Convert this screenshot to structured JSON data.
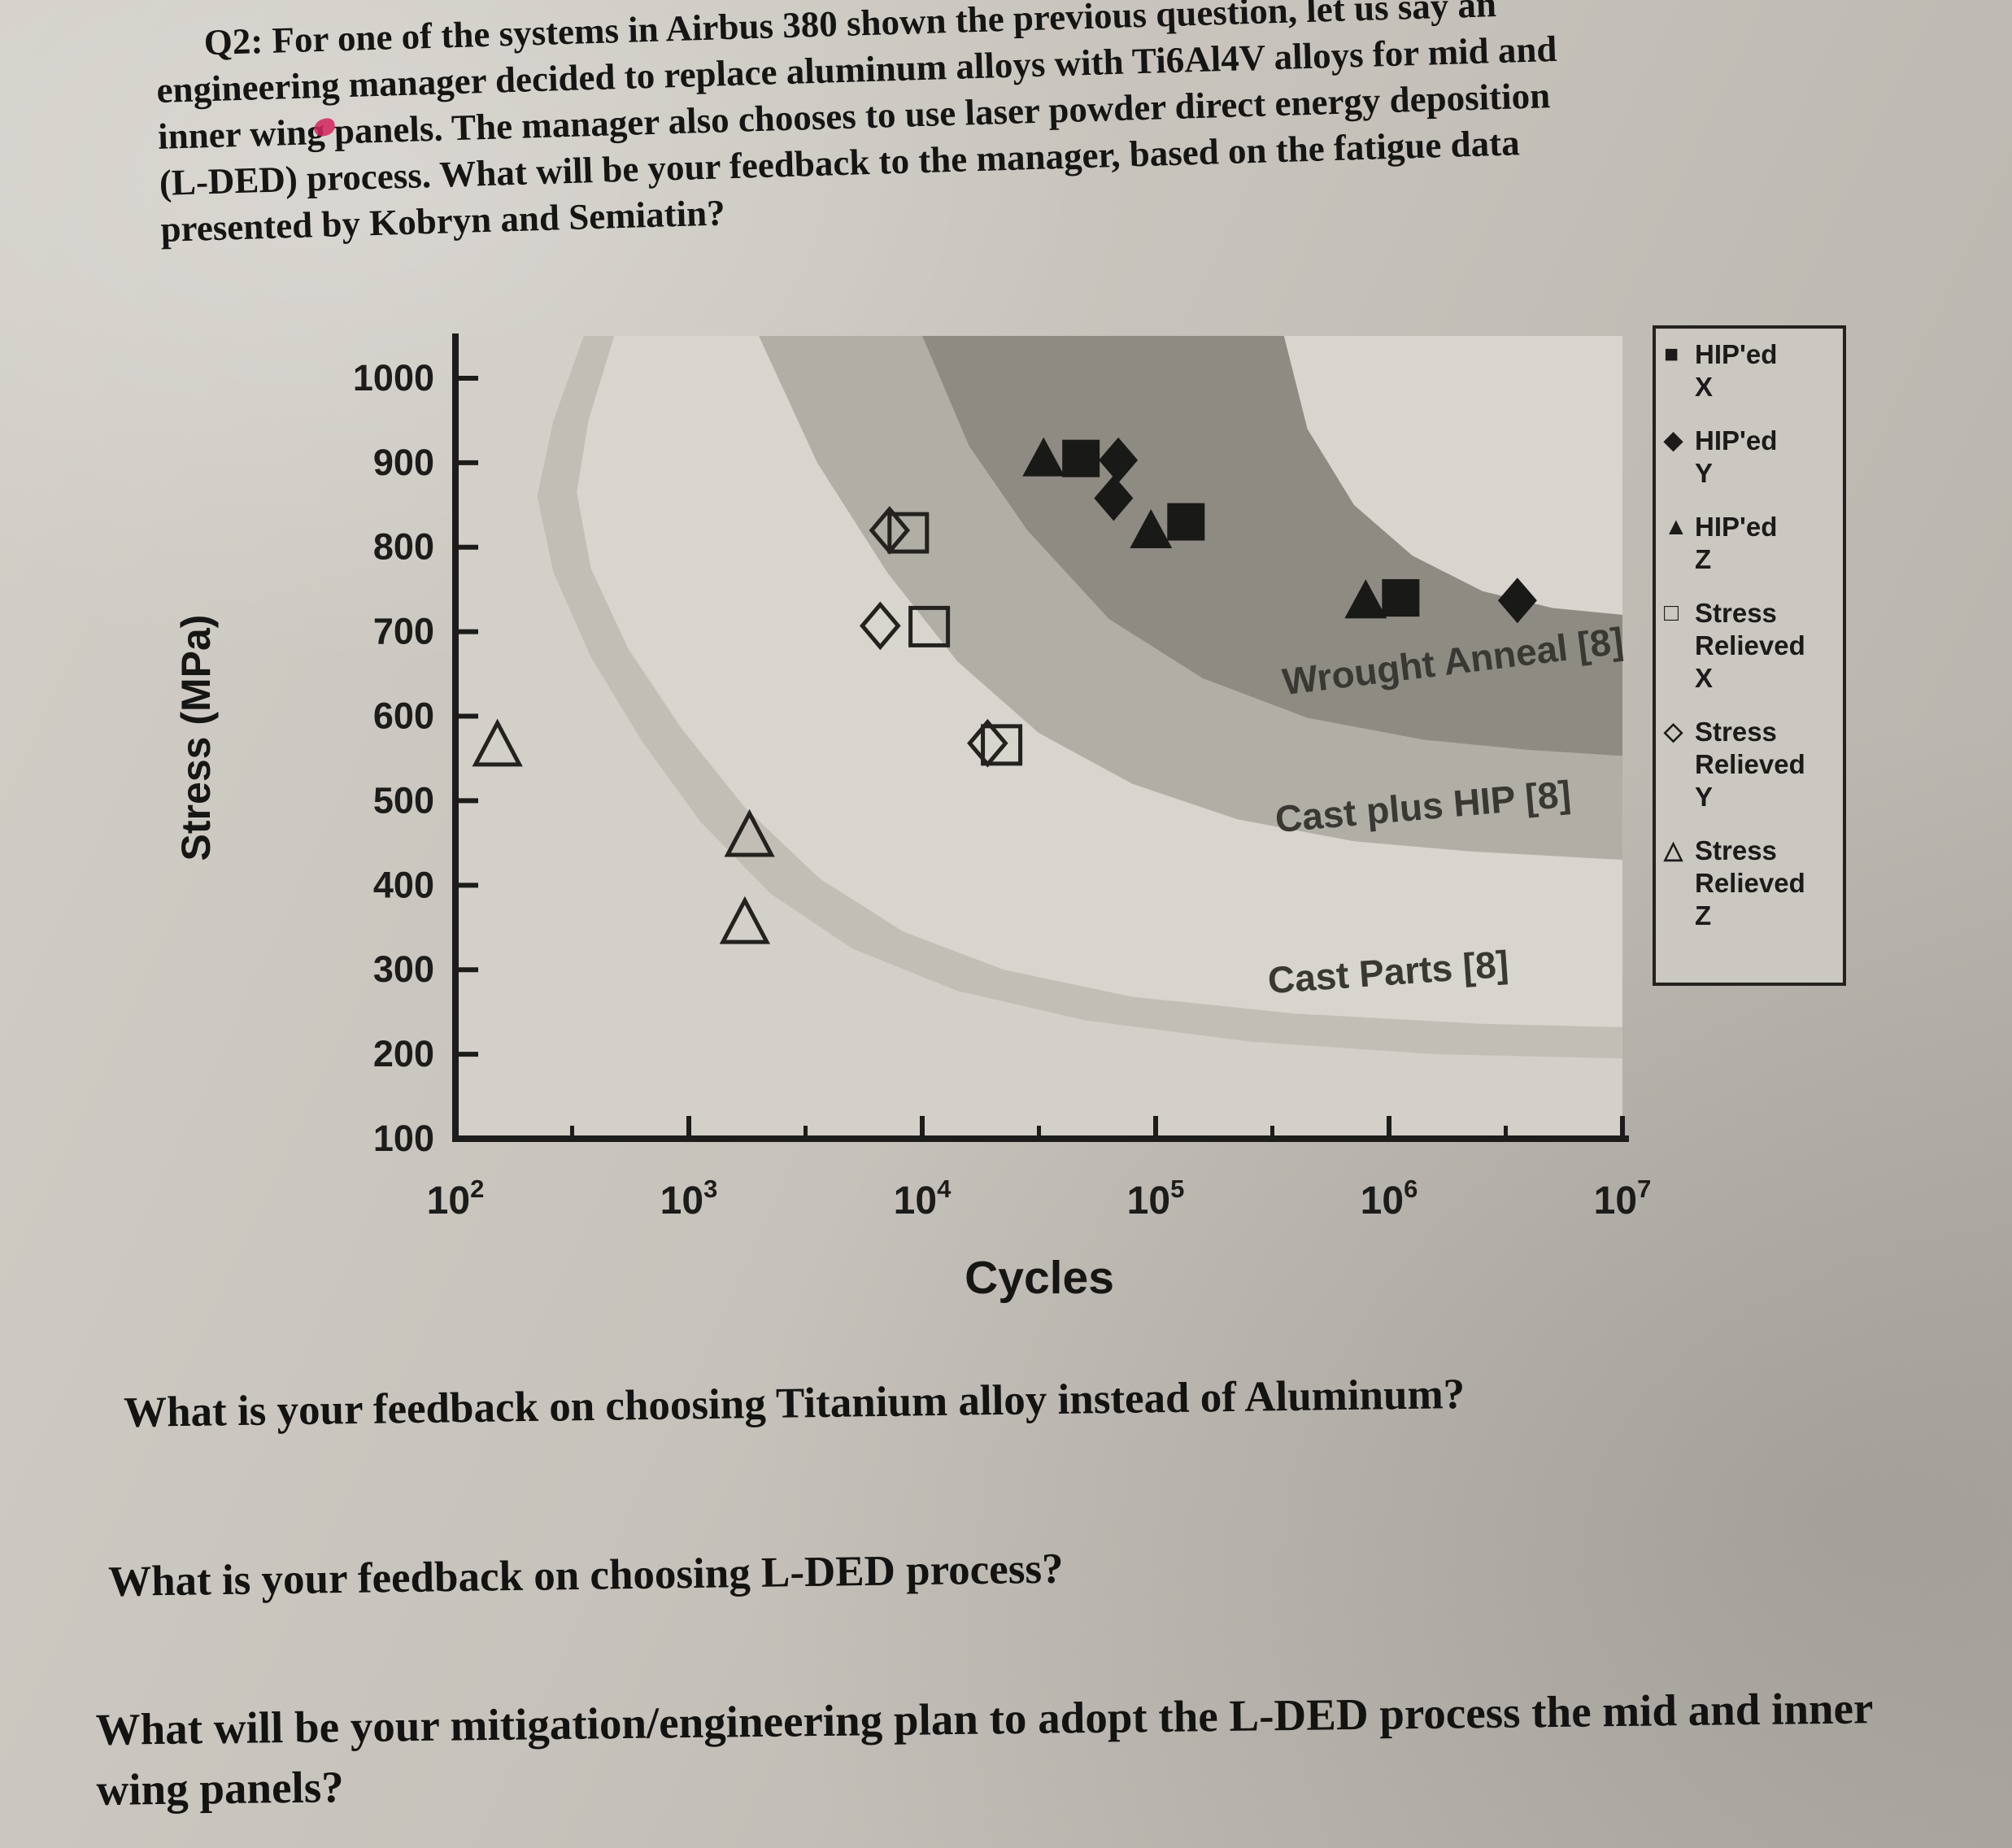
{
  "page": {
    "header_lines": [
      "Q2: For one of the systems in Airbus 380 shown the previous question, let us say an",
      "engineering manager decided to replace aluminum alloys with Ti6Al4V alloys for mid and",
      "inner wing panels.  The manager also chooses to use laser powder direct energy deposition",
      "(L-DED) process.  What will be your feedback to the manager, based on the fatigue data",
      "presented by Kobryn and Semiatin?"
    ],
    "questions": [
      "What is your feedback on choosing Titanium alloy instead of Aluminum?",
      "What is your feedback on choosing L-DED process?",
      "What will be your mitigation/engineering plan to adopt the L-DED process the mid and inner wing panels?"
    ]
  },
  "chart_data": {
    "type": "scatter",
    "xlabel": "Cycles",
    "ylabel": "Stress (MPa)",
    "x_scale": "log",
    "xlim_exponents": [
      2,
      7
    ],
    "x_tick_exponents": [
      2,
      3,
      4,
      5,
      6,
      7
    ],
    "ylim": [
      100,
      1000
    ],
    "y_ticks": [
      100,
      200,
      300,
      400,
      500,
      600,
      700,
      800,
      900,
      1000
    ],
    "colors": {
      "plot_bg": "#d3d0c9",
      "marker": "#191917",
      "axis": "#1c1c1a"
    },
    "bands": [
      {
        "name": "cast-parts-outer",
        "color": "#c2beb6",
        "points": [
          [
            2.55,
            1050
          ],
          [
            2.42,
            950
          ],
          [
            2.35,
            860
          ],
          [
            2.42,
            770
          ],
          [
            2.58,
            670
          ],
          [
            2.8,
            570
          ],
          [
            3.05,
            475
          ],
          [
            3.35,
            390
          ],
          [
            3.7,
            325
          ],
          [
            4.15,
            275
          ],
          [
            4.7,
            240
          ],
          [
            5.4,
            215
          ],
          [
            6.2,
            200
          ],
          [
            7.0,
            195
          ],
          [
            7.0,
            1050
          ]
        ]
      },
      {
        "name": "cast-inner-light",
        "color": "#d8d5ce",
        "points": [
          [
            2.68,
            1050
          ],
          [
            2.57,
            950
          ],
          [
            2.52,
            865
          ],
          [
            2.58,
            775
          ],
          [
            2.74,
            680
          ],
          [
            2.97,
            585
          ],
          [
            3.24,
            492
          ],
          [
            3.56,
            408
          ],
          [
            3.92,
            345
          ],
          [
            4.35,
            300
          ],
          [
            4.9,
            268
          ],
          [
            5.6,
            248
          ],
          [
            6.4,
            236
          ],
          [
            7.0,
            232
          ],
          [
            7.0,
            1050
          ]
        ]
      },
      {
        "name": "cast-plus-hip",
        "color": "#b1aea6",
        "points": [
          [
            3.3,
            1050
          ],
          [
            3.55,
            900
          ],
          [
            3.85,
            770
          ],
          [
            4.15,
            665
          ],
          [
            4.5,
            580
          ],
          [
            4.9,
            520
          ],
          [
            5.35,
            478
          ],
          [
            5.85,
            452
          ],
          [
            6.35,
            440
          ],
          [
            7.0,
            430
          ],
          [
            7.0,
            553
          ],
          [
            6.6,
            560
          ],
          [
            6.15,
            572
          ],
          [
            5.65,
            598
          ],
          [
            5.2,
            645
          ],
          [
            4.8,
            715
          ],
          [
            4.45,
            820
          ],
          [
            4.2,
            920
          ],
          [
            4.0,
            1050
          ]
        ]
      },
      {
        "name": "wrought-anneal",
        "color": "#8e8b83",
        "points": [
          [
            4.0,
            1050
          ],
          [
            4.2,
            920
          ],
          [
            4.45,
            820
          ],
          [
            4.8,
            715
          ],
          [
            5.2,
            645
          ],
          [
            5.65,
            598
          ],
          [
            6.15,
            572
          ],
          [
            6.6,
            560
          ],
          [
            7.0,
            553
          ],
          [
            7.0,
            720
          ],
          [
            6.7,
            728
          ],
          [
            6.4,
            748
          ],
          [
            6.1,
            790
          ],
          [
            5.85,
            850
          ],
          [
            5.65,
            940
          ],
          [
            5.55,
            1050
          ]
        ]
      }
    ],
    "region_labels": [
      {
        "text": "Wrought Anneal [8]",
        "log_cycles": 6.28,
        "stress": 650,
        "rotation": -7
      },
      {
        "text": "Cast plus HIP [8]",
        "log_cycles": 6.15,
        "stress": 478,
        "rotation": -5
      },
      {
        "text": "Cast Parts [8]",
        "log_cycles": 6.0,
        "stress": 282,
        "rotation": -4
      }
    ],
    "series": [
      {
        "name": "HIP'ed X",
        "marker": "filled-square",
        "points": [
          [
            4.68,
            905
          ],
          [
            5.13,
            830
          ],
          [
            6.05,
            740
          ]
        ]
      },
      {
        "name": "HIP'ed Y",
        "marker": "filled-diamond",
        "points": [
          [
            4.84,
            903
          ],
          [
            4.82,
            858
          ],
          [
            6.55,
            737
          ]
        ]
      },
      {
        "name": "HIP'ed Z",
        "marker": "filled-triangle",
        "points": [
          [
            4.52,
            905
          ],
          [
            4.98,
            820
          ],
          [
            5.9,
            737
          ]
        ]
      },
      {
        "name": "Stress Relieved X",
        "marker": "open-square",
        "points": [
          [
            3.94,
            817
          ],
          [
            4.03,
            706
          ],
          [
            4.34,
            566
          ]
        ]
      },
      {
        "name": "Stress Relieved Y",
        "marker": "open-diamond",
        "points": [
          [
            3.86,
            820
          ],
          [
            3.82,
            707
          ],
          [
            4.28,
            568
          ]
        ]
      },
      {
        "name": "Stress Relieved Z",
        "marker": "open-triangle",
        "points": [
          [
            2.18,
            565
          ],
          [
            3.26,
            458
          ],
          [
            3.24,
            355
          ]
        ]
      }
    ],
    "legend": [
      {
        "marker": "filled-square",
        "label": "HIP'ed X",
        "lines": [
          "HIP'ed",
          "X"
        ]
      },
      {
        "marker": "filled-diamond",
        "label": "HIP'ed Y",
        "lines": [
          "HIP'ed",
          "Y"
        ]
      },
      {
        "marker": "filled-triangle",
        "label": "HIP'ed Z",
        "lines": [
          "HIP'ed",
          "Z"
        ]
      },
      {
        "marker": "open-square",
        "label": "Stress Relieved X",
        "lines": [
          "Stress",
          "Relieved",
          "X"
        ]
      },
      {
        "marker": "open-diamond",
        "label": "Stress Relieved Y",
        "lines": [
          "Stress",
          "Relieved",
          "Y"
        ]
      },
      {
        "marker": "open-triangle",
        "label": "Stress Relieved Z",
        "lines": [
          "Stress",
          "Relieved",
          "Z"
        ]
      }
    ],
    "legend_position": "right",
    "grid": false
  }
}
